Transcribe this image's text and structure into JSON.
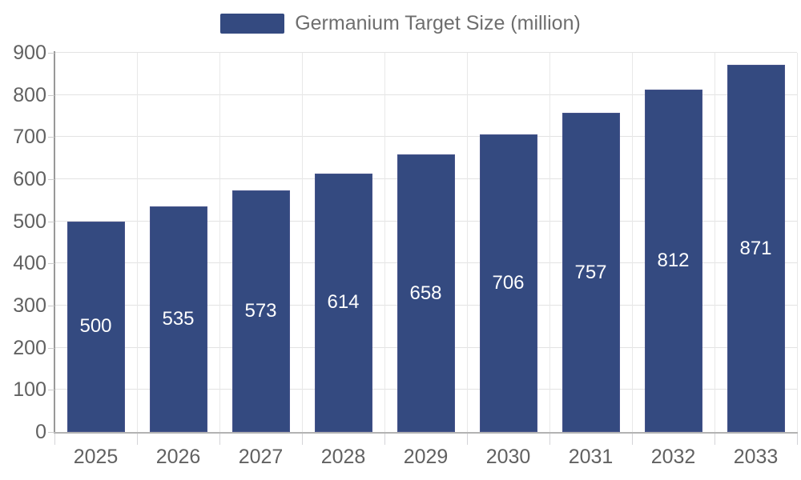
{
  "chart_data": {
    "type": "bar",
    "title": "",
    "xlabel": "",
    "ylabel": "",
    "legend_label": "Germanium Target Size (million)",
    "legend_position": "top",
    "categories": [
      "2025",
      "2026",
      "2027",
      "2028",
      "2029",
      "2030",
      "2031",
      "2032",
      "2033"
    ],
    "series": [
      {
        "name": "Germanium Target Size (million)",
        "values": [
          500,
          535,
          573,
          614,
          658,
          706,
          757,
          812,
          871
        ]
      }
    ],
    "ylim": [
      0,
      900
    ],
    "ytick_step": 100,
    "ytick_values": [
      0,
      100,
      200,
      300,
      400,
      500,
      600,
      700,
      800,
      900
    ],
    "grid": true,
    "bar_color": "#344a80",
    "bar_label_color": "#ffffff",
    "axis_text_color": "#616161",
    "legend_text_color": "#6e6e6e",
    "gridline_color": "#e3e3e3"
  }
}
